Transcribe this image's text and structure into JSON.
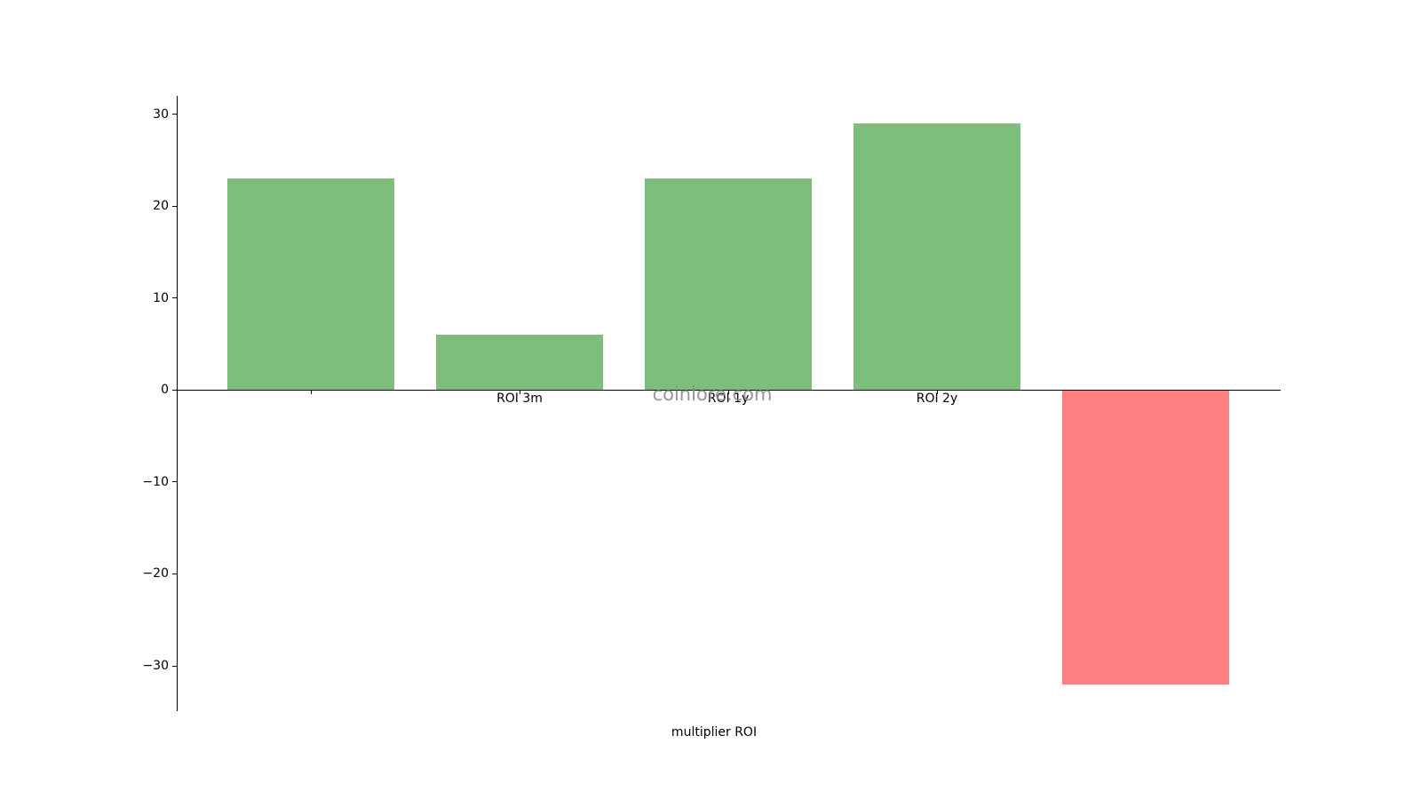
{
  "watermark": "coinlore.com",
  "chart_data": {
    "type": "bar",
    "title": "",
    "xlabel": "multiplier ROI",
    "ylabel": "",
    "categories": [
      "",
      "ROI 3m",
      "ROI 1y",
      "ROI 2y",
      ""
    ],
    "values": [
      23,
      6,
      23,
      29,
      -32
    ],
    "bar_colors": [
      "#7dbe7d",
      "#7dbe7d",
      "#7dbe7d",
      "#7dbe7d",
      "#ff8080"
    ],
    "positive_color": "#7dbe7d",
    "negative_color": "#ff8080",
    "ytick_labels": [
      "30",
      "20",
      "10",
      "0",
      "−10",
      "−20",
      "−30"
    ],
    "ytick_values": [
      30,
      20,
      10,
      0,
      -10,
      -20,
      -30
    ],
    "ylim": [
      -35,
      32
    ],
    "grid": false,
    "legend_position": "none",
    "axis_color": "#000000",
    "watermark_color": "#8c8c8c"
  }
}
